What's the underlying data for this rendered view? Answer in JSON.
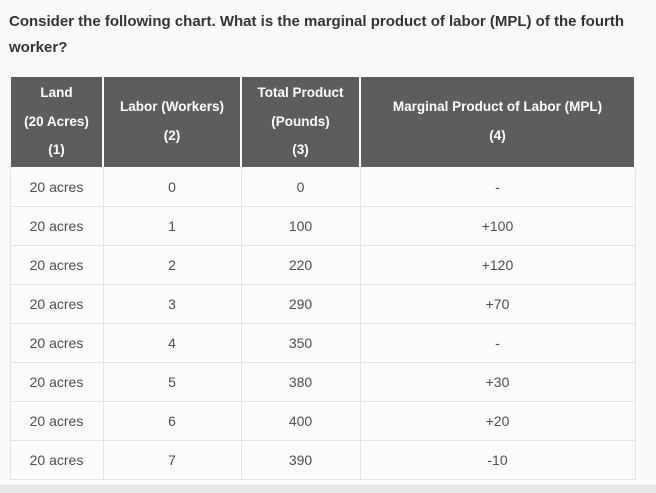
{
  "page": {
    "question": "Consider the following chart. What is the marginal product of labor (MPL) of the fourth worker?"
  },
  "table": {
    "headers": [
      {
        "lines": [
          "Land",
          "(20 Acres)",
          "(1)"
        ]
      },
      {
        "lines": [
          "Labor (Workers)",
          "(2)"
        ]
      },
      {
        "lines": [
          "Total Product",
          "(Pounds)",
          "(3)"
        ]
      },
      {
        "lines": [
          "Marginal Product of Labor (MPL)",
          "(4)"
        ]
      }
    ],
    "rows": [
      [
        "20 acres",
        "0",
        "0",
        "-"
      ],
      [
        "20 acres",
        "1",
        "100",
        "+100"
      ],
      [
        "20 acres",
        "2",
        "220",
        "+120"
      ],
      [
        "20 acres",
        "3",
        "290",
        "+70"
      ],
      [
        "20 acres",
        "4",
        "350",
        "-"
      ],
      [
        "20 acres",
        "5",
        "380",
        "+30"
      ],
      [
        "20 acres",
        "6",
        "400",
        "+20"
      ],
      [
        "20 acres",
        "7",
        "390",
        "-10"
      ]
    ]
  },
  "colors": {
    "header_bg": "#5d5d5d",
    "header_text": "#ffffff",
    "body_text": "#4d4d4d",
    "row_border": "#e2e2e2",
    "page_bg": "#fafafa"
  }
}
